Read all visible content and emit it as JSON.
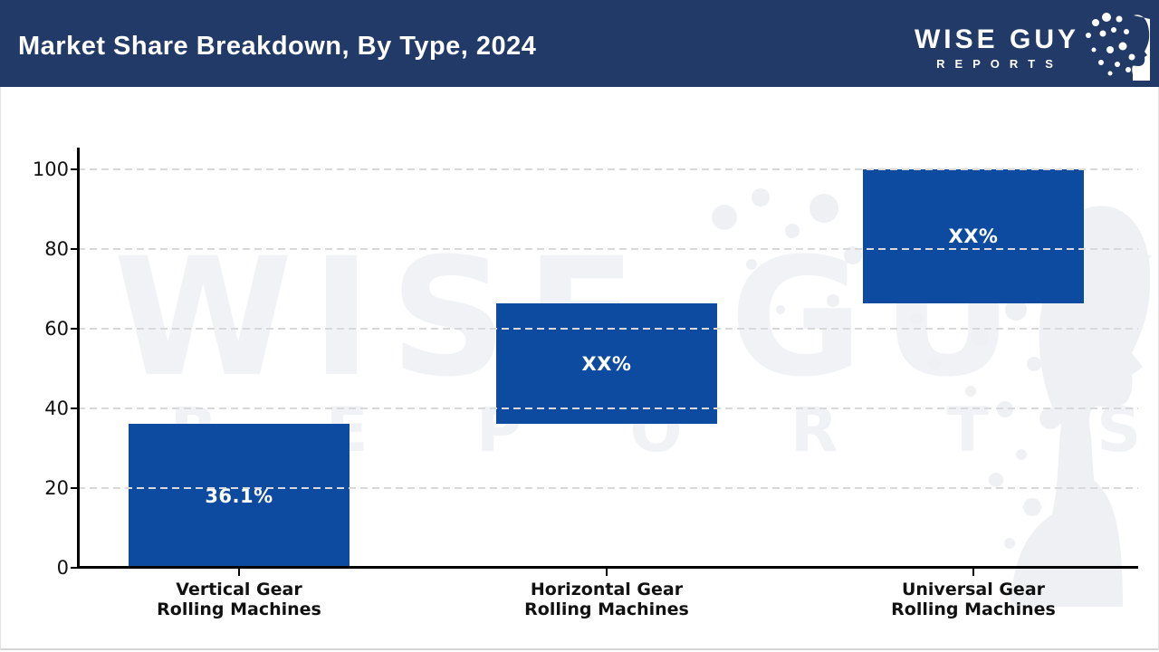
{
  "header": {
    "title": "Market Share Breakdown, By Type, 2024",
    "background_color": "#223A68",
    "logo": {
      "line1": "WISE GUY",
      "line2": "REPORTS"
    }
  },
  "watermark": {
    "line1": "WISE GUY",
    "line2": "R E P O R T S"
  },
  "chart_data": {
    "type": "bar",
    "variant": "floating-segment-waterfall",
    "title": "Market Share Breakdown, By Type, 2024",
    "categories": [
      {
        "line1": "Vertical Gear",
        "line2": "Rolling Machines"
      },
      {
        "line1": "Horizontal Gear",
        "line2": "Rolling Machines"
      },
      {
        "line1": "Universal Gear",
        "line2": "Rolling Machines"
      }
    ],
    "bars": [
      {
        "start": 0,
        "end": 36.1,
        "label": "36.1%"
      },
      {
        "start": 36.1,
        "end": 66.3,
        "label": "XX%"
      },
      {
        "start": 66.3,
        "end": 100,
        "label": "XX%"
      }
    ],
    "yticks": [
      0,
      20,
      40,
      60,
      80,
      100
    ],
    "ylim": [
      0,
      105
    ],
    "xlabel": "",
    "ylabel": "",
    "bar_color": "#0C4BA0",
    "grid": "dashed-horizontal",
    "gridline_color": "#d9d9d9",
    "legend": "none"
  }
}
